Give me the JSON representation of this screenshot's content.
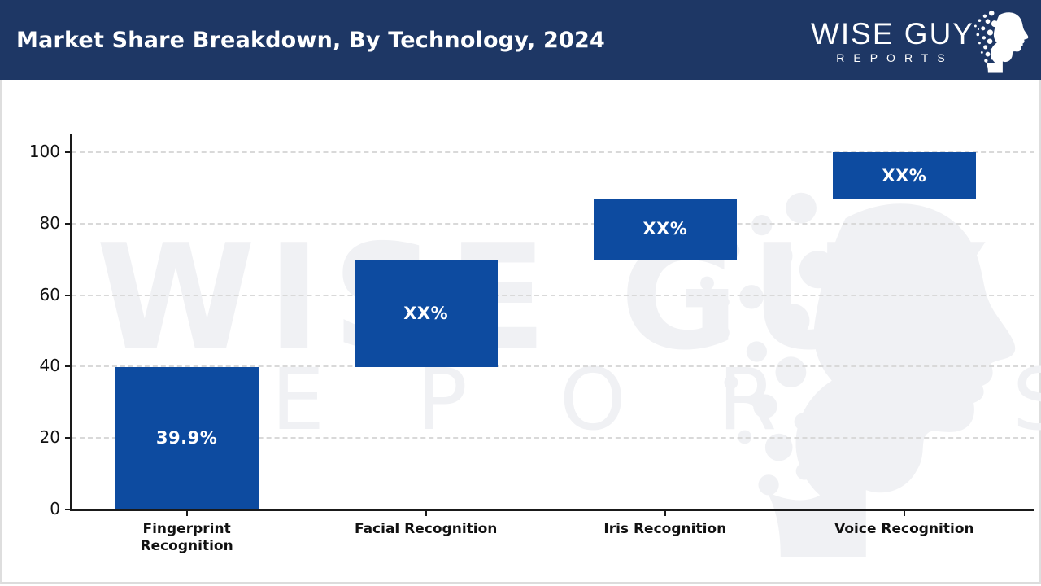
{
  "header": {
    "title": "Market Share Breakdown, By Technology, 2024",
    "logo": {
      "line1": "WISE GUY",
      "line2": "REPORTS"
    }
  },
  "watermark": {
    "line1": "WISE GUY",
    "line2": "R E P O R T S"
  },
  "colors": {
    "header_bg": "#1e3765",
    "bar_fill": "#0d4ba0",
    "bar_label": "#ffffff",
    "gridline": "#d9d9d9",
    "axis": "#1a1a1a",
    "watermark": "#f0f1f4"
  },
  "chart_data": {
    "type": "bar",
    "subtype": "stacked-waterfall",
    "title": "Market Share Breakdown, By Technology, 2024",
    "xlabel": "",
    "ylabel": "",
    "categories": [
      "Fingerprint\nRecognition",
      "Facial Recognition",
      "Iris Recognition",
      "Voice Recognition"
    ],
    "segments": [
      {
        "start": 0,
        "end": 39.9,
        "label": "39.9%"
      },
      {
        "start": 39.9,
        "end": 70,
        "label": "XX%"
      },
      {
        "start": 70,
        "end": 87,
        "label": "XX%"
      },
      {
        "start": 87,
        "end": 100,
        "label": "XX%"
      }
    ],
    "yticks": [
      0,
      20,
      40,
      60,
      80,
      100
    ],
    "ylim": [
      0,
      105
    ],
    "grid": "dashed horizontal",
    "legend": "none"
  }
}
